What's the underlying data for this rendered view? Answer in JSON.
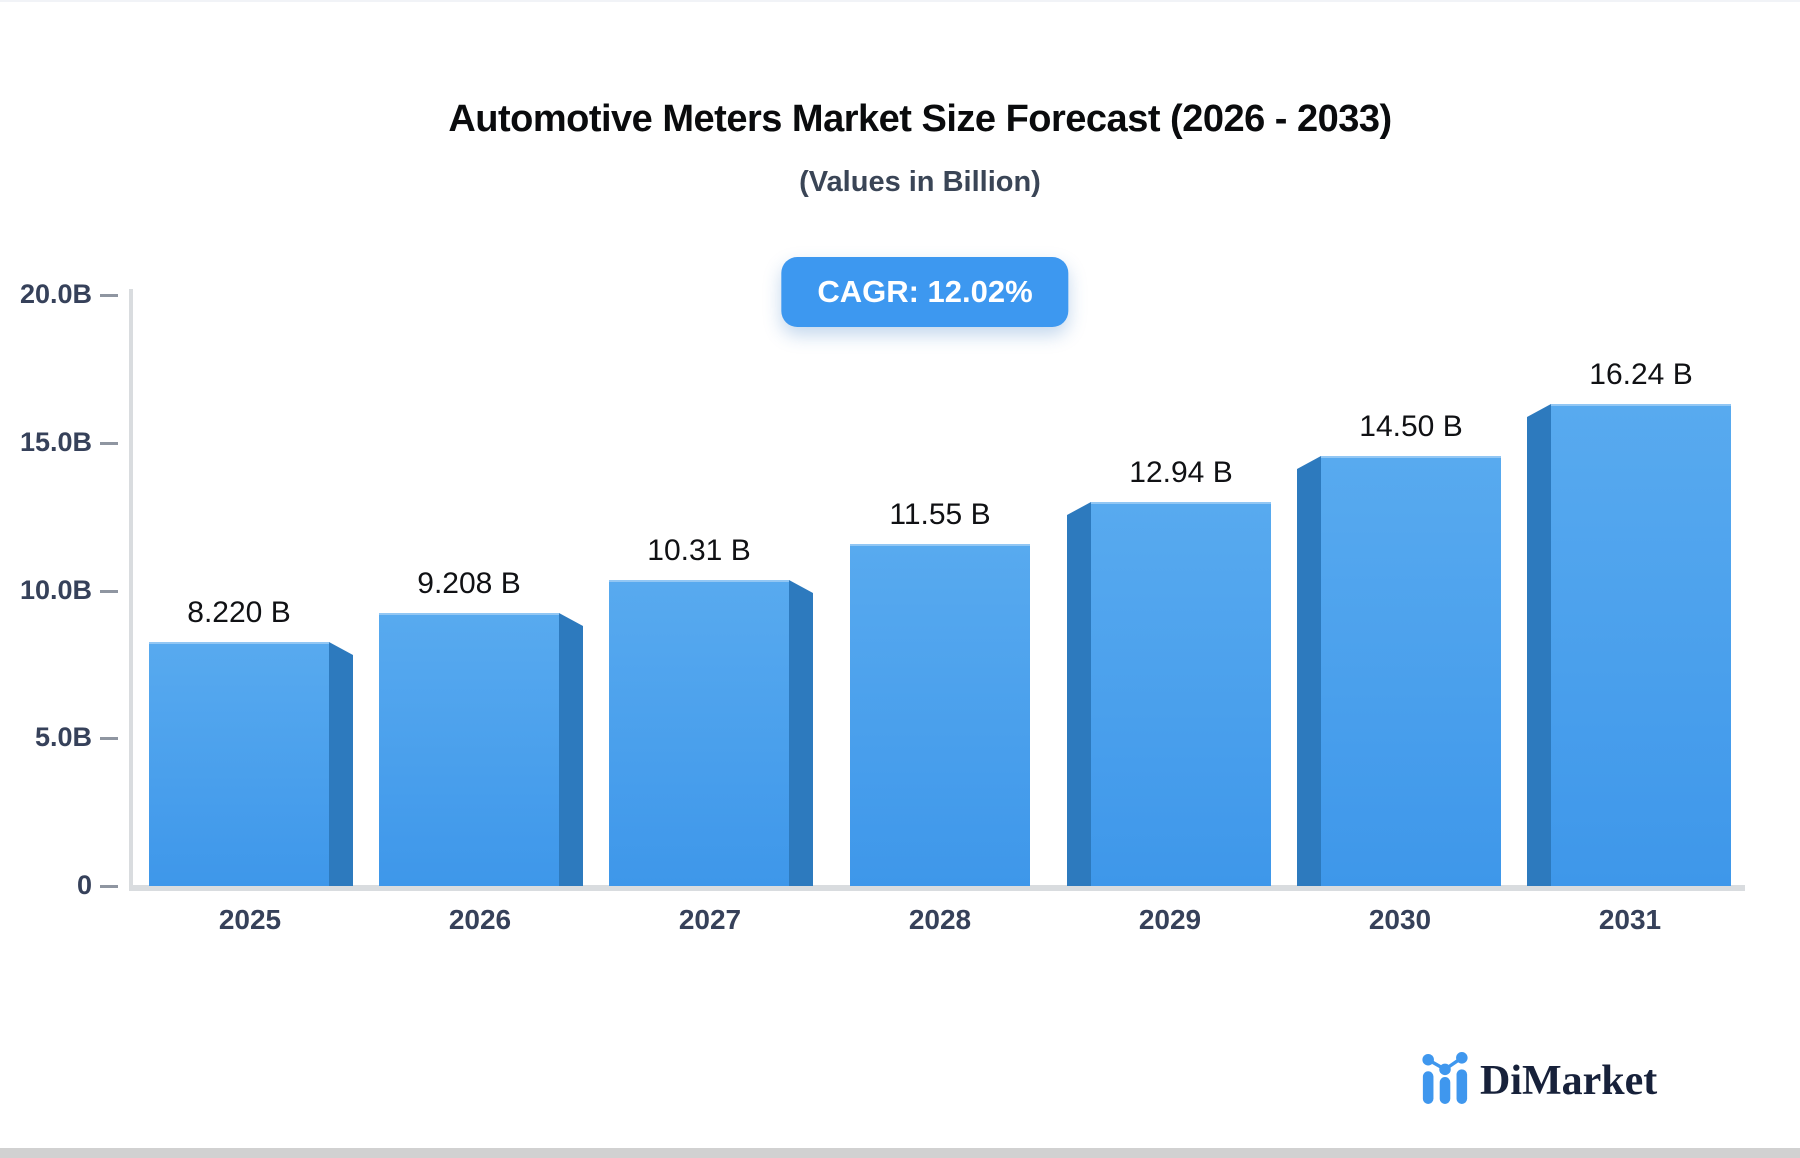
{
  "header": {
    "title": "Automotive Meters Market Size Forecast (2026 - 2033)",
    "subtitle": "(Values in Billion)",
    "cagr_badge": "CAGR: 12.02%"
  },
  "chart_data": {
    "type": "bar",
    "title": "Automotive Meters Market Size Forecast (2026 - 2033)",
    "subtitle": "(Values in Billion)",
    "cagr_text": "CAGR: 12.02%",
    "cagr_percent": 12.02,
    "categories": [
      "2025",
      "2026",
      "2027",
      "2028",
      "2029",
      "2030",
      "2031"
    ],
    "values": [
      8.22,
      9.208,
      10.31,
      11.55,
      12.94,
      14.5,
      16.24
    ],
    "value_labels": [
      "8.220 B",
      "9.208 B",
      "10.31 B",
      "11.55 B",
      "12.94 B",
      "14.50 B",
      "16.24 B"
    ],
    "y_ticks": [
      "20.0B",
      "15.0B",
      "10.0B",
      "5.0B",
      "0"
    ],
    "ylim": [
      0,
      20
    ],
    "xlabel": "",
    "ylabel": "",
    "grid": false,
    "legend": false,
    "bar_color_top": "#58aaef",
    "bar_color_bottom": "#3e97ea",
    "bar_side_color": "#2d7abe",
    "badge_color": "#3d98f0",
    "axis_color": "#d9dcdf"
  },
  "footer": {
    "logo_text": "DiMarket",
    "logo_icon": "bar-chart-logo-icon",
    "logo_icon_color": "#3f97ee",
    "logo_text_color": "#17213a"
  }
}
